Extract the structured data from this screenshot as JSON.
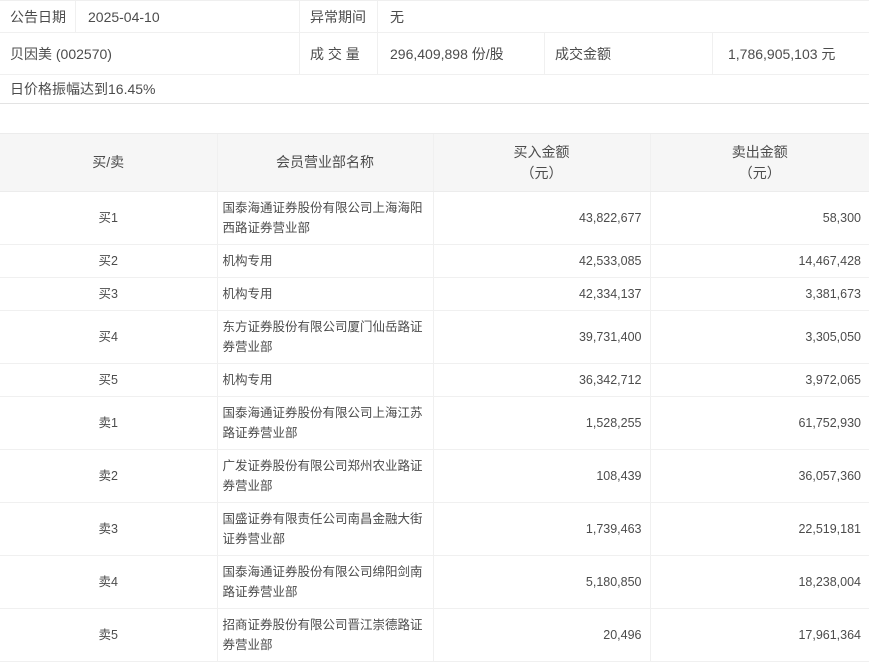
{
  "info": {
    "announce_date_label": "公告日期",
    "announce_date": "2025-04-10",
    "abnormal_period_label": "异常期间",
    "abnormal_period": "无",
    "stock_name": "贝因美 (002570)",
    "volume_label": "成 交 量",
    "volume": "296,409,898 份/股",
    "turnover_label": "成交金额",
    "turnover": "1,786,905,103 元",
    "reason": "日价格振幅达到16.45%"
  },
  "table": {
    "headers": {
      "side": "买/卖",
      "branch": "会员营业部名称",
      "buy_line1": "买入金额",
      "buy_line2": "（元）",
      "sell_line1": "卖出金额",
      "sell_line2": "（元）"
    },
    "rows": [
      {
        "side": "买1",
        "branch": "国泰海通证券股份有限公司上海海阳西路证券营业部",
        "buy": "43,822,677",
        "sell": "58,300"
      },
      {
        "side": "买2",
        "branch": "机构专用",
        "buy": "42,533,085",
        "sell": "14,467,428"
      },
      {
        "side": "买3",
        "branch": "机构专用",
        "buy": "42,334,137",
        "sell": "3,381,673"
      },
      {
        "side": "买4",
        "branch": "东方证券股份有限公司厦门仙岳路证券营业部",
        "buy": "39,731,400",
        "sell": "3,305,050"
      },
      {
        "side": "买5",
        "branch": "机构专用",
        "buy": "36,342,712",
        "sell": "3,972,065"
      },
      {
        "side": "卖1",
        "branch": "国泰海通证券股份有限公司上海江苏路证券营业部",
        "buy": "1,528,255",
        "sell": "61,752,930"
      },
      {
        "side": "卖2",
        "branch": "广发证券股份有限公司郑州农业路证券营业部",
        "buy": "108,439",
        "sell": "36,057,360"
      },
      {
        "side": "卖3",
        "branch": "国盛证券有限责任公司南昌金融大街证券营业部",
        "buy": "1,739,463",
        "sell": "22,519,181"
      },
      {
        "side": "卖4",
        "branch": "国泰海通证券股份有限公司绵阳剑南路证券营业部",
        "buy": "5,180,850",
        "sell": "18,238,004"
      },
      {
        "side": "卖5",
        "branch": "招商证券股份有限公司晋江崇德路证券营业部",
        "buy": "20,496",
        "sell": "17,961,364"
      }
    ]
  },
  "colors": {
    "background": "#ffffff",
    "header_bg": "#f6f6f6",
    "border": "#f0f0f0",
    "text": "#4c4c4c"
  }
}
